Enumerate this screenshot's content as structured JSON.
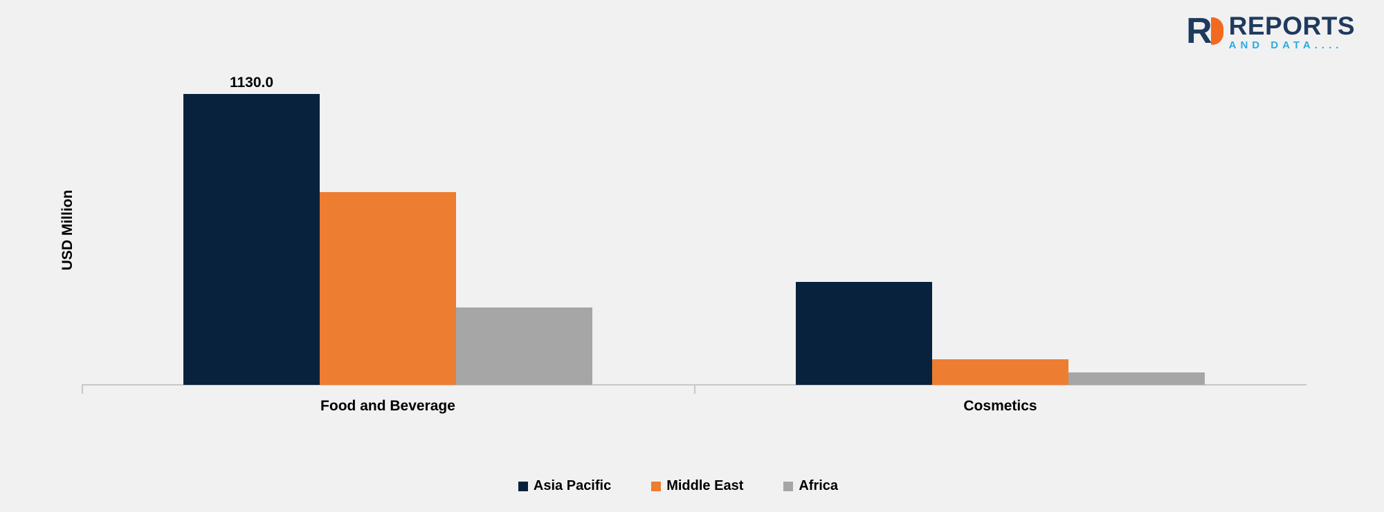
{
  "background": "#f1f1f1",
  "logo": {
    "icon_letter": "R",
    "brand_top": "REPORTS",
    "brand_bottom": "AND DATA....",
    "navy": "#1e3a5e",
    "blue": "#2aabe2",
    "orange": "#f26a21"
  },
  "chart_data": {
    "type": "bar",
    "title": "",
    "categories": [
      "Food and Beverage",
      "Cosmetics"
    ],
    "series": [
      {
        "name": "Asia Pacific",
        "color": "#08223d",
        "values": [
          1130.0,
          400
        ]
      },
      {
        "name": "Middle East",
        "color": "#ed7d31",
        "values": [
          750,
          100
        ]
      },
      {
        "name": "Africa",
        "color": "#a6a6a6",
        "values": [
          300,
          48
        ]
      }
    ],
    "data_labels": [
      {
        "category_index": 0,
        "series_index": 0,
        "text": "1130.0"
      }
    ],
    "xlabel": "",
    "ylabel": "USD Million",
    "ylim": [
      0,
      1200
    ],
    "grid": false,
    "legend_position": "bottom"
  }
}
